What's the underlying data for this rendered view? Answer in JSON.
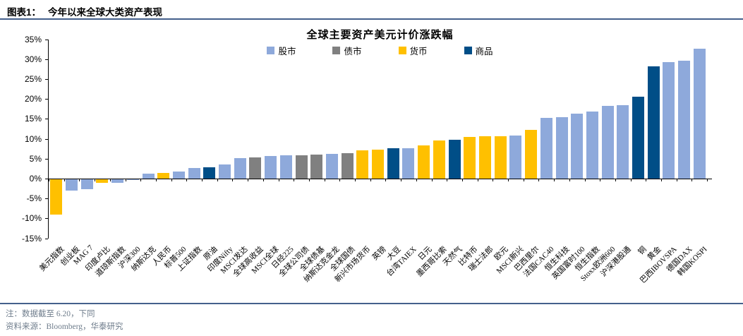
{
  "header": {
    "figure_label": "图表1：",
    "figure_title": "今年以来全球大类资产表现"
  },
  "chart_data": {
    "type": "bar",
    "title": "全球主要资产美元计价涨跌幅",
    "xlabel": "",
    "ylabel": "",
    "ylim": [
      -15,
      35
    ],
    "ytick_step": 5,
    "ytick_labels": [
      "35%",
      "30%",
      "25%",
      "20%",
      "15%",
      "10%",
      "5%",
      "0%",
      "-5%",
      "-10%",
      "-15%"
    ],
    "grid": false,
    "legend_position": "top-center",
    "legend": [
      {
        "label": "股市",
        "color": "#8EA9DB"
      },
      {
        "label": "债市",
        "color": "#808080"
      },
      {
        "label": "货币",
        "color": "#FFC000"
      },
      {
        "label": "商品",
        "color": "#004E87"
      }
    ],
    "bars": [
      {
        "label": "美元指数",
        "category": "货币",
        "value": -8.9
      },
      {
        "label": "创业板",
        "category": "股市",
        "value": -2.8
      },
      {
        "label": "MAG 7",
        "category": "股市",
        "value": -2.5
      },
      {
        "label": "印度卢比",
        "category": "货币",
        "value": -0.9
      },
      {
        "label": "道琼斯指数",
        "category": "股市",
        "value": -0.8
      },
      {
        "label": "沪深300",
        "category": "股市",
        "value": -0.1
      },
      {
        "label": "纳斯达克",
        "category": "股市",
        "value": 1.2
      },
      {
        "label": "人民币",
        "category": "货币",
        "value": 1.5
      },
      {
        "label": "标普500",
        "category": "股市",
        "value": 1.8
      },
      {
        "label": "上证指数",
        "category": "股市",
        "value": 2.6
      },
      {
        "label": "原油",
        "category": "商品",
        "value": 2.9
      },
      {
        "label": "印度Nifty",
        "category": "股市",
        "value": 3.5
      },
      {
        "label": "MSCI发达",
        "category": "股市",
        "value": 5.1
      },
      {
        "label": "全球高收益",
        "category": "债市",
        "value": 5.3
      },
      {
        "label": "MSCI全球",
        "category": "股市",
        "value": 5.7
      },
      {
        "label": "日经225",
        "category": "股市",
        "value": 5.8
      },
      {
        "label": "全球公司债",
        "category": "债市",
        "value": 5.9
      },
      {
        "label": "全球债基",
        "category": "债市",
        "value": 6.0
      },
      {
        "label": "纳斯达克金龙",
        "category": "股市",
        "value": 6.3
      },
      {
        "label": "全球国债",
        "category": "债市",
        "value": 6.4
      },
      {
        "label": "新兴市场货币",
        "category": "货币",
        "value": 7.1
      },
      {
        "label": "英镑",
        "category": "货币",
        "value": 7.2
      },
      {
        "label": "大豆",
        "category": "商品",
        "value": 7.6
      },
      {
        "label": "台湾TAIEX",
        "category": "股市",
        "value": 7.7
      },
      {
        "label": "日元",
        "category": "货币",
        "value": 8.4
      },
      {
        "label": "墨西哥比索",
        "category": "货币",
        "value": 9.6
      },
      {
        "label": "天然气",
        "category": "商品",
        "value": 9.8
      },
      {
        "label": "比特币",
        "category": "货币",
        "value": 10.5
      },
      {
        "label": "瑞士法郎",
        "category": "货币",
        "value": 10.6
      },
      {
        "label": "欧元",
        "category": "货币",
        "value": 10.7
      },
      {
        "label": "MSCI新兴",
        "category": "股市",
        "value": 10.8
      },
      {
        "label": "巴西里尔",
        "category": "货币",
        "value": 12.2
      },
      {
        "label": "法国CAC40",
        "category": "股市",
        "value": 15.2
      },
      {
        "label": "恒生科技",
        "category": "股市",
        "value": 15.5
      },
      {
        "label": "英国富时100",
        "category": "股市",
        "value": 16.4
      },
      {
        "label": "恒生指数",
        "category": "股市",
        "value": 16.9
      },
      {
        "label": "Stoxx欧洲600",
        "category": "股市",
        "value": 18.2
      },
      {
        "label": "沪深港股通",
        "category": "股市",
        "value": 18.4
      },
      {
        "label": "铜",
        "category": "商品",
        "value": 20.5
      },
      {
        "label": "黄金",
        "category": "商品",
        "value": 28.2
      },
      {
        "label": "巴西IBOVSPA",
        "category": "股市",
        "value": 29.3
      },
      {
        "label": "德国DAX",
        "category": "股市",
        "value": 29.7
      },
      {
        "label": "韩国KOSPI",
        "category": "股市",
        "value": 32.7
      }
    ]
  },
  "footer": {
    "note": "注：数据截至 6.20，下同",
    "source": "资料来源：Bloomberg，华泰研究"
  },
  "colors": {
    "rule": "#44608C",
    "axis": "#000000",
    "note_text": "#6F7D8C"
  }
}
